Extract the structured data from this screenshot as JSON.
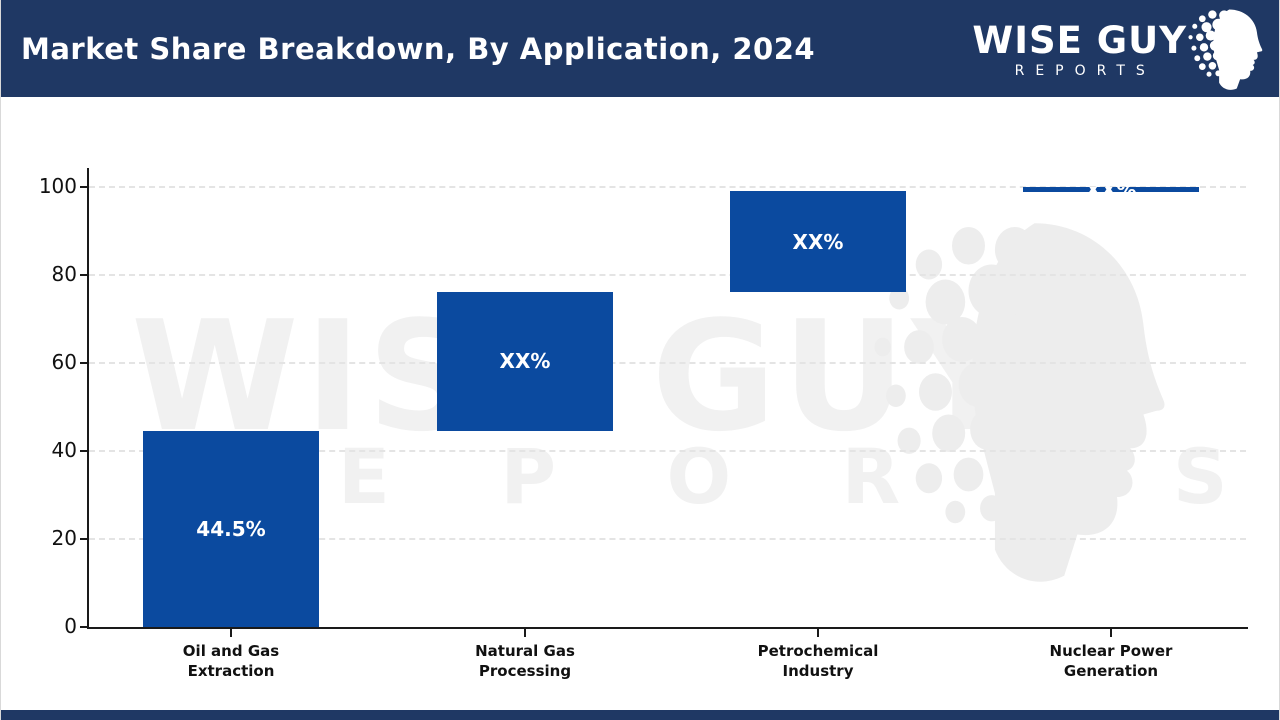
{
  "header": {
    "title": "Market Share Breakdown, By Application, 2024",
    "logo": {
      "brand_line1": "WISE GUY",
      "brand_line2": "REPORTS"
    }
  },
  "watermark": {
    "line1": "WISE GUY",
    "line2": "R E P O R T S"
  },
  "colors": {
    "header_bg": "#1F3864",
    "footer_bg": "#1F3864",
    "bar": "#0B4A9F",
    "bar_label_text": "#FFFFFF",
    "grid": "#E4E4E4",
    "axis": "#1A1A1A",
    "watermark": "#F1F1F1"
  },
  "chart_data": {
    "type": "bar",
    "subtype": "waterfall",
    "title": "Market Share Breakdown, By Application, 2024",
    "categories": [
      "Oil and Gas\nExtraction",
      "Natural Gas\nProcessing",
      "Petrochemical\nIndustry",
      "Nuclear Power\nGeneration"
    ],
    "bar_labels": [
      "44.5%",
      "XX%",
      "XX%",
      "XX%"
    ],
    "segments": [
      {
        "start": 0,
        "end": 44.5
      },
      {
        "start": 44.5,
        "end": 76.2
      },
      {
        "start": 76.2,
        "end": 99.0
      },
      {
        "start": 99.0,
        "end": 100.0
      }
    ],
    "values_pct": [
      44.5,
      31.7,
      22.8,
      1.0
    ],
    "y_ticks": [
      0,
      20,
      40,
      60,
      80,
      100
    ],
    "ylim": [
      0,
      104
    ],
    "xlabel": "",
    "ylabel": "",
    "grid": "horizontal-dashed",
    "legend": "none"
  }
}
